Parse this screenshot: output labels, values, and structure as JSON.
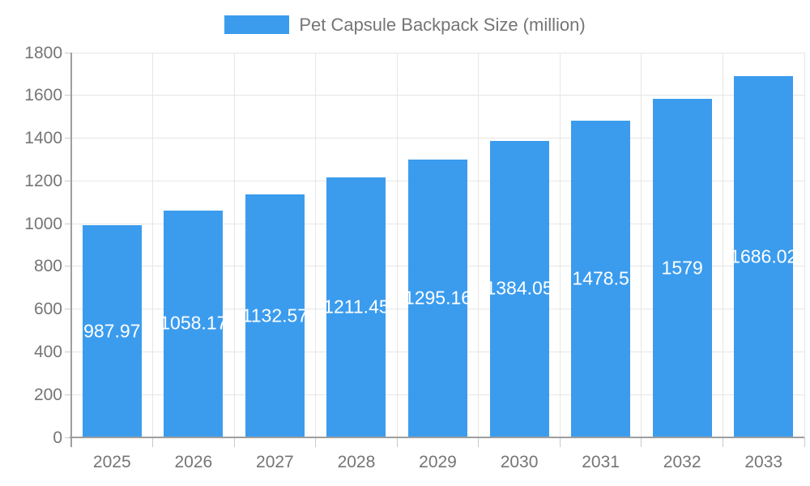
{
  "legend": {
    "label": "Pet Capsule Backpack Size (million)"
  },
  "chart_data": {
    "type": "bar",
    "title": "Pet Capsule Backpack Size (million)",
    "categories": [
      "2025",
      "2026",
      "2027",
      "2028",
      "2029",
      "2030",
      "2031",
      "2032",
      "2033"
    ],
    "values": [
      987.97,
      1058.17,
      1132.57,
      1211.45,
      1295.16,
      1384.05,
      1478.5,
      1579,
      1686.02
    ],
    "value_labels": [
      "987.97",
      "1058.17",
      "1132.57",
      "1211.45",
      "1295.16",
      "1384.05",
      "1478.5",
      "1579",
      "1686.02"
    ],
    "xlabel": "",
    "ylabel": "",
    "ylim": [
      0,
      1800
    ],
    "yticks": [
      0,
      200,
      400,
      600,
      800,
      1000,
      1200,
      1400,
      1600,
      1800
    ],
    "grid": true,
    "legend_position": "top",
    "colors": {
      "bar": "#3b9cee",
      "value_label": "#ffffff",
      "axis_text": "#757575",
      "legend_text": "#757575",
      "gridline": "#e6e6e6",
      "axis_line": "#9e9e9e",
      "tick": "#c9c9c9"
    }
  }
}
